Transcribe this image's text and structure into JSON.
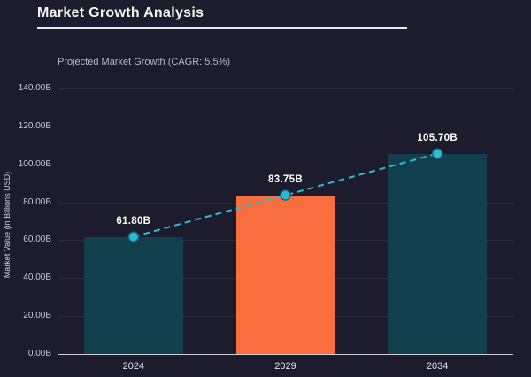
{
  "header": {
    "title": "Market Growth Analysis",
    "subtitle": "Projected Market Growth (CAGR: 5.5%)"
  },
  "chart_data": {
    "type": "bar",
    "title": "Projected Market Growth (CAGR: 5.5%)",
    "categories": [
      "2024",
      "2029",
      "2034"
    ],
    "values": [
      61.8,
      83.75,
      105.7
    ],
    "value_labels": [
      "61.80B",
      "83.75B",
      "105.70B"
    ],
    "series": [
      {
        "name": "Market Value",
        "values": [
          61.8,
          83.75,
          105.7
        ]
      }
    ],
    "xlabel": "",
    "ylabel": "Market Value (in Billions USD)",
    "ylim": [
      0,
      140
    ],
    "ytick_interval": 20,
    "ytick_labels": [
      "0.00B",
      "20.00B",
      "40.00B",
      "60.00B",
      "80.00B",
      "100.00B",
      "120.00B",
      "140.00B"
    ],
    "grid": true,
    "legend": "none",
    "trend_line": {
      "style": "dashed",
      "color": "#2fb9d5",
      "marker": "circle",
      "marker_edge": "#136880"
    },
    "bar_colors": [
      "#123f4e",
      "#f96e3e",
      "#123f4e"
    ]
  },
  "colors": {
    "background": "#1c1c2c",
    "title_text": "#f5f5f7",
    "subtitle_text": "#b9bac4",
    "axis_text": "#d6d7df",
    "gridline": "#2b2b3e",
    "axis_line": "#cfd1d9",
    "value_label_text": "#ffffff"
  }
}
